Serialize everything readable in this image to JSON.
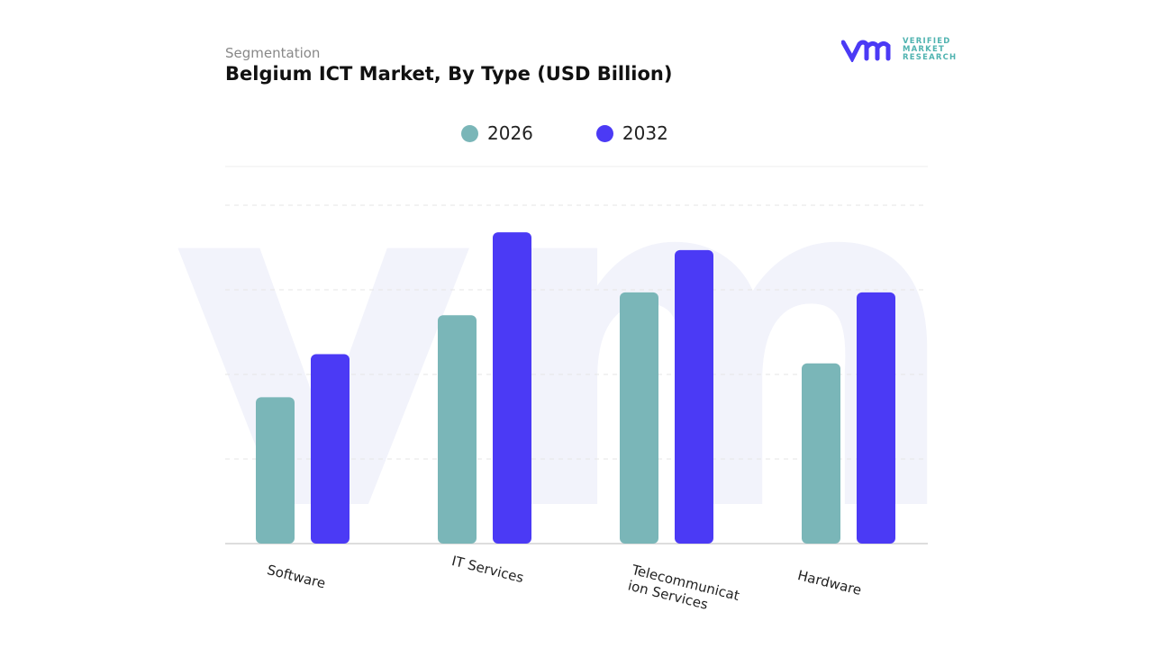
{
  "header": {
    "subtitle": "Segmentation",
    "title": "Belgium ICT Market, By Type (USD Billion)"
  },
  "logo": {
    "lines": [
      "VERIFIED",
      "MARKET",
      "RESEARCH"
    ]
  },
  "colors": {
    "2026": "#7ab6b8",
    "2032": "#4b3af5"
  },
  "chart_data": {
    "type": "bar",
    "title": "Belgium ICT Market, By Type (USD Billion)",
    "categories": [
      "Software",
      "IT Services",
      "Telecommunication Services",
      "Hardware"
    ],
    "series": [
      {
        "name": "2026",
        "values": [
          1.73,
          2.7,
          2.97,
          2.13
        ]
      },
      {
        "name": "2032",
        "values": [
          2.24,
          3.68,
          3.47,
          2.97
        ]
      }
    ],
    "ylim": [
      0,
      4
    ],
    "grid": true,
    "legend": "top-center",
    "note_units": "relative (no y-axis labels shown)"
  }
}
